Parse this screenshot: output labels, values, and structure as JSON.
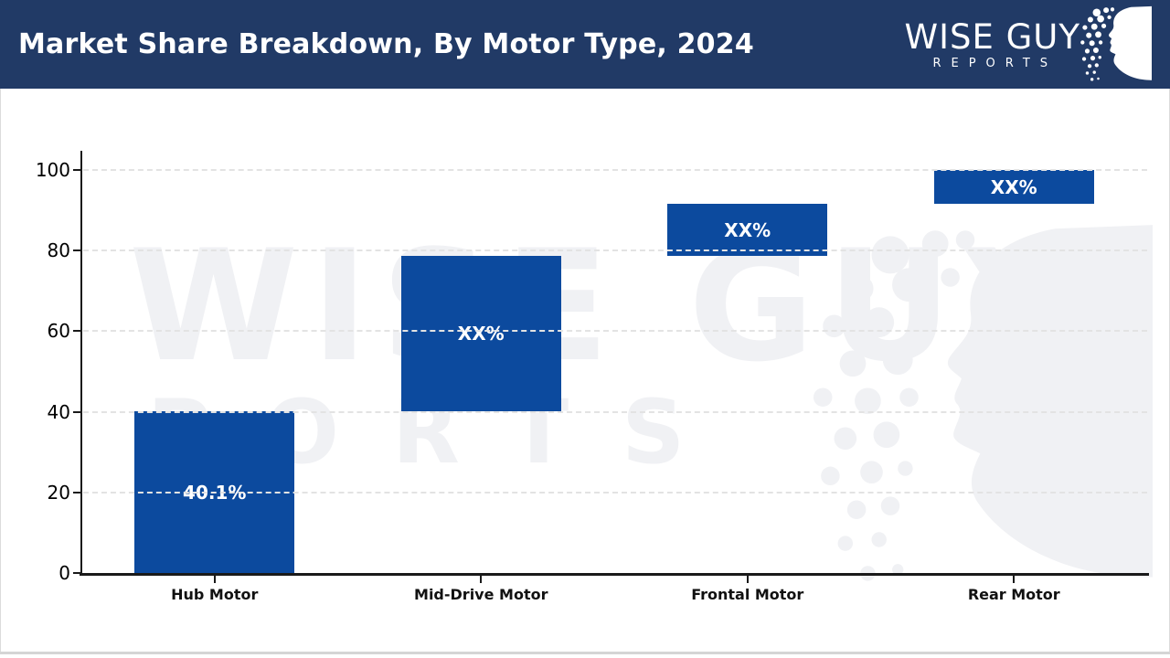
{
  "header": {
    "title": "Market Share Breakdown, By Motor Type, 2024",
    "background": "#213a66",
    "logo": {
      "line1": "WISE GUY",
      "line2": "REPORTS"
    }
  },
  "watermark": {
    "line1": "WISE GUY",
    "line2": "PORTS"
  },
  "chart_data": {
    "type": "bar",
    "subtype": "waterfall",
    "title": "Market Share Breakdown, By Motor Type, 2024",
    "categories": [
      "Hub Motor",
      "Mid-Drive Motor",
      "Frontal Motor",
      "Rear Motor"
    ],
    "bars": [
      {
        "category": "Hub Motor",
        "start": 0,
        "end": 40.1,
        "label": "40.1%"
      },
      {
        "category": "Mid-Drive Motor",
        "start": 40.1,
        "end": 78.6,
        "label": "XX%"
      },
      {
        "category": "Frontal Motor",
        "start": 78.6,
        "end": 91.5,
        "label": "XX%"
      },
      {
        "category": "Rear Motor",
        "start": 91.5,
        "end": 100,
        "label": "XX%"
      }
    ],
    "xlabel": "",
    "ylabel": "",
    "yticks": [
      0,
      20,
      40,
      60,
      80,
      100
    ],
    "ylim": [
      0,
      105
    ],
    "grid": {
      "axis": "y",
      "style": "dashed",
      "color": "#e3e3e3",
      "above_bars": true
    },
    "bar_color": "#0c4a9e",
    "bar_label_color": "#ffffff",
    "axis_color": "#1a1a1a",
    "tick_label_color": "#000000",
    "legend": null
  }
}
